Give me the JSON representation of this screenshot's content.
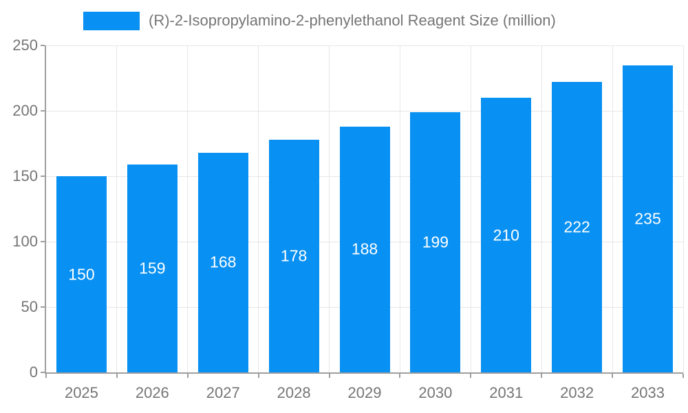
{
  "chart_data": {
    "type": "bar",
    "title": "(R)-2-Isopropylamino-2-phenylethanol Reagent Size (million)",
    "categories": [
      "2025",
      "2026",
      "2027",
      "2028",
      "2029",
      "2030",
      "2031",
      "2032",
      "2033"
    ],
    "values": [
      150,
      159,
      168,
      178,
      188,
      199,
      210,
      222,
      235
    ],
    "value_labels": [
      "150",
      "159",
      "168",
      "178",
      "188",
      "199",
      "210",
      "222",
      "235"
    ],
    "xlabel": "",
    "ylabel": "",
    "ylim": [
      0,
      250
    ],
    "ytick_step": 50,
    "ytick_labels": [
      "0",
      "50",
      "100",
      "150",
      "200",
      "250"
    ],
    "grid": true,
    "legend_position": "top",
    "colors": {
      "bar": "#0890f2",
      "bar_value_text": "#ffffff",
      "gridline": "#e6e6e6",
      "axis_line": "#9e9e9e",
      "tick_text": "#757575",
      "title_text": "#757575",
      "background": "#ffffff"
    }
  }
}
